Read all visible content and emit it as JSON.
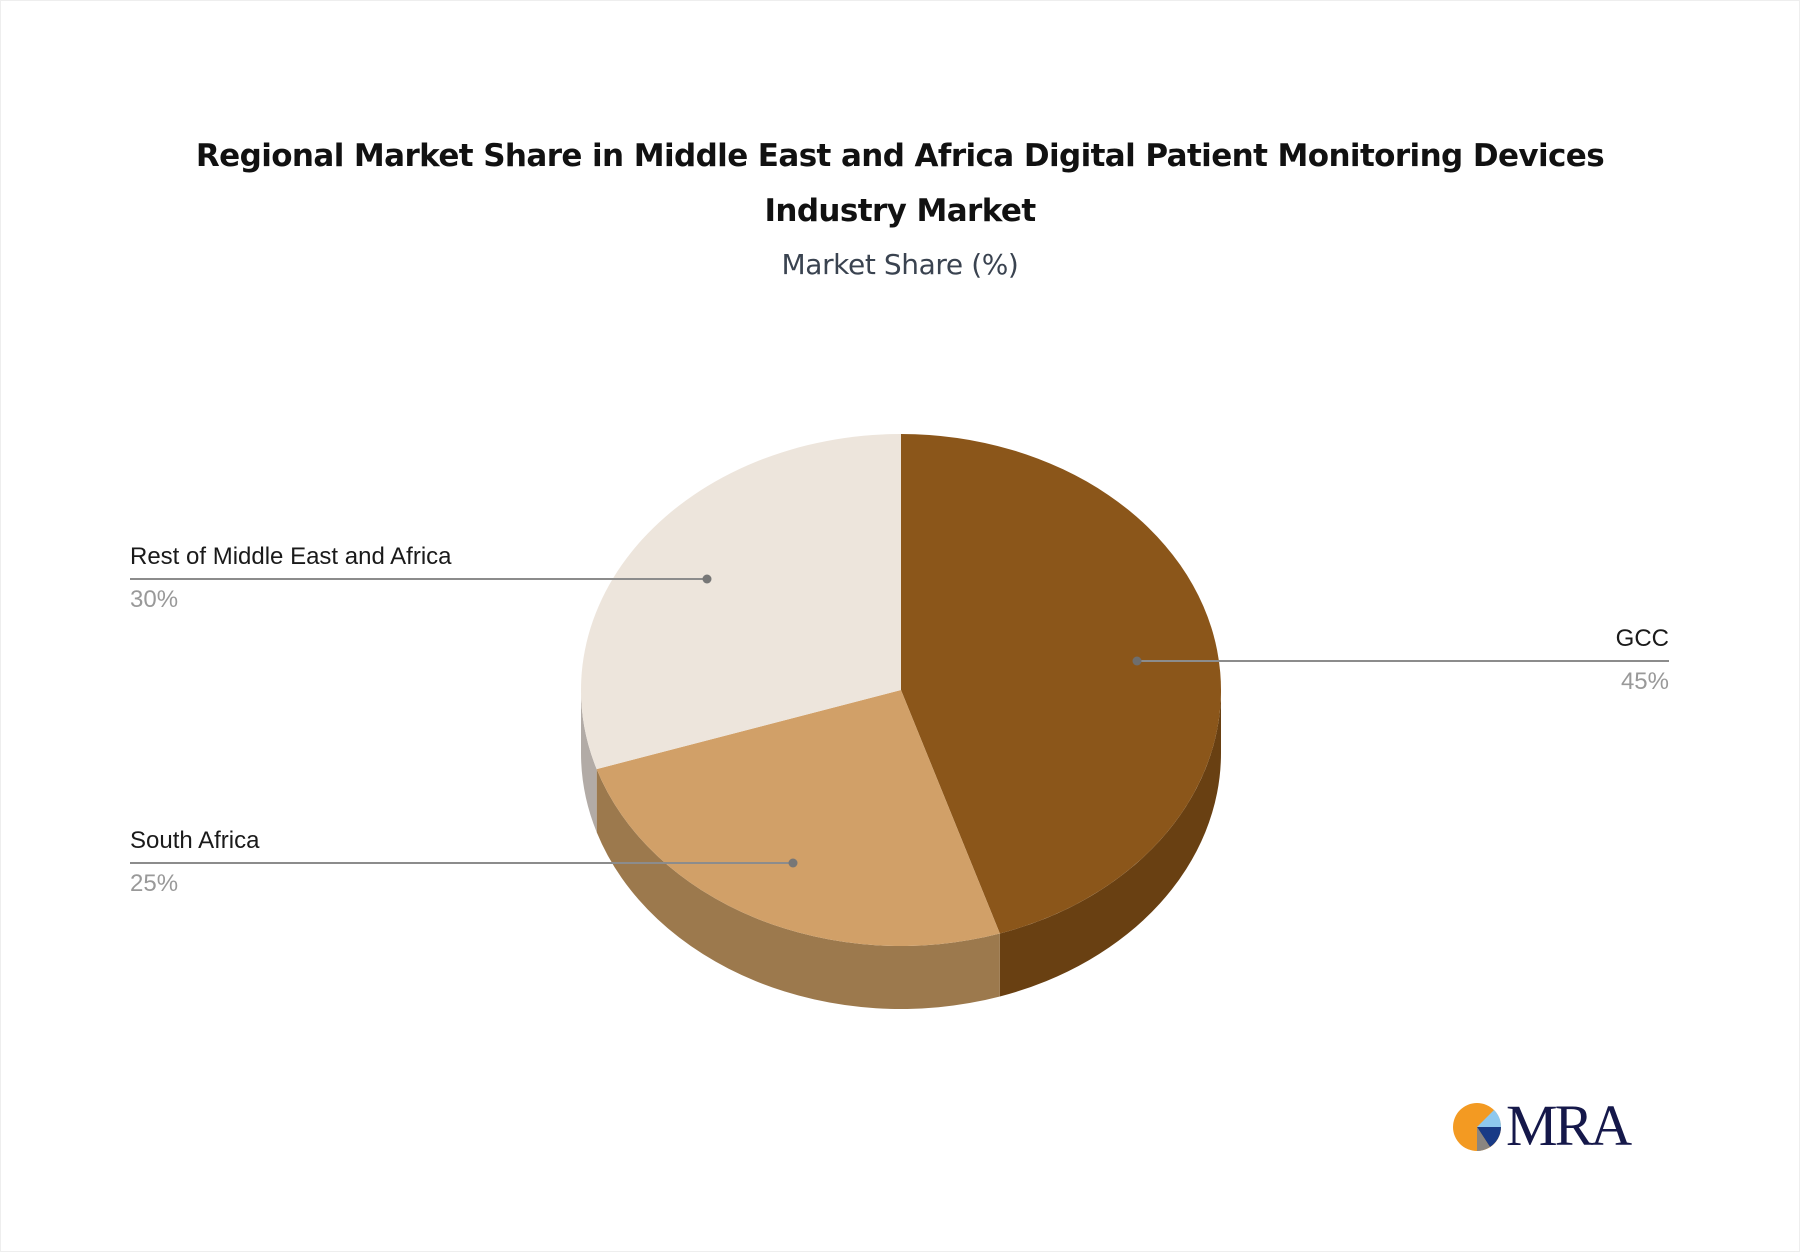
{
  "chart_data": {
    "type": "pie",
    "title": "Regional Market Share in Middle East and Africa Digital Patient Monitoring Devices Industry Market",
    "subtitle": "Market Share (%)",
    "categories": [
      "GCC",
      "South Africa",
      "Rest of Middle East and Africa"
    ],
    "values": [
      45,
      25,
      30
    ],
    "colors": [
      "#8B561A",
      "#D1A068",
      "#EDE5DC"
    ],
    "side_colors": [
      "#694012",
      "#9C794D",
      "#B2ABA6"
    ],
    "style": "3d",
    "legend": "callout labels"
  },
  "header": {
    "title_line1": "Regional Market Share in Middle East and Africa Digital Patient Monitoring Devices",
    "title_line2": "Industry Market",
    "subtitle": "Market Share (%)"
  },
  "labels": {
    "gcc": {
      "name": "GCC",
      "value": "45%"
    },
    "south_africa": {
      "name": "South Africa",
      "value": "25%"
    },
    "rest": {
      "name": "Rest of Middle East and Africa",
      "value": "30%"
    }
  },
  "logo": {
    "text": "MRA"
  }
}
